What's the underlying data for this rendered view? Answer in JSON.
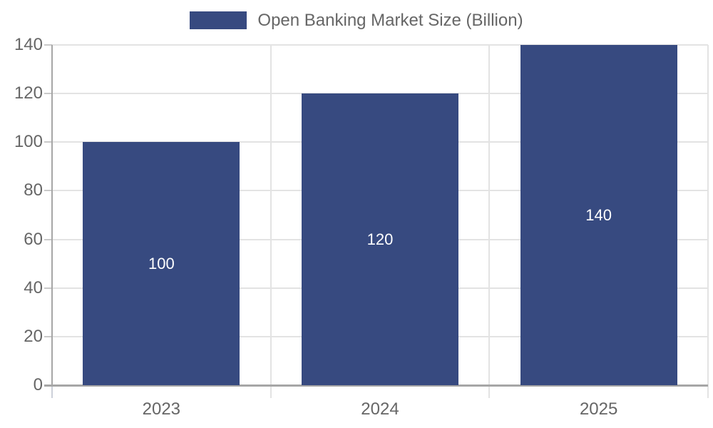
{
  "chart_data": {
    "type": "bar",
    "title": "Open Banking Market Size (Billion)",
    "legend": [
      "Open Banking Market Size (Billion)"
    ],
    "legend_position": "top",
    "categories": [
      "2023",
      "2024",
      "2025"
    ],
    "series": [
      {
        "name": "Open Banking Market Size (Billion)",
        "values": [
          100,
          120,
          140
        ]
      }
    ],
    "data_labels": [
      "100",
      "120",
      "140"
    ],
    "xlabel": "",
    "ylabel": "",
    "ylim": [
      0,
      140
    ],
    "yticks": [
      0,
      20,
      40,
      60,
      80,
      100,
      120,
      140
    ],
    "grid": true,
    "colors": {
      "bar": "#374A80",
      "gridline": "#e3e3e3",
      "axis": "#a6a6a6",
      "tick_label": "#666666",
      "legend_text": "#666666",
      "data_label": "#ffffff",
      "background": "#ffffff"
    }
  }
}
